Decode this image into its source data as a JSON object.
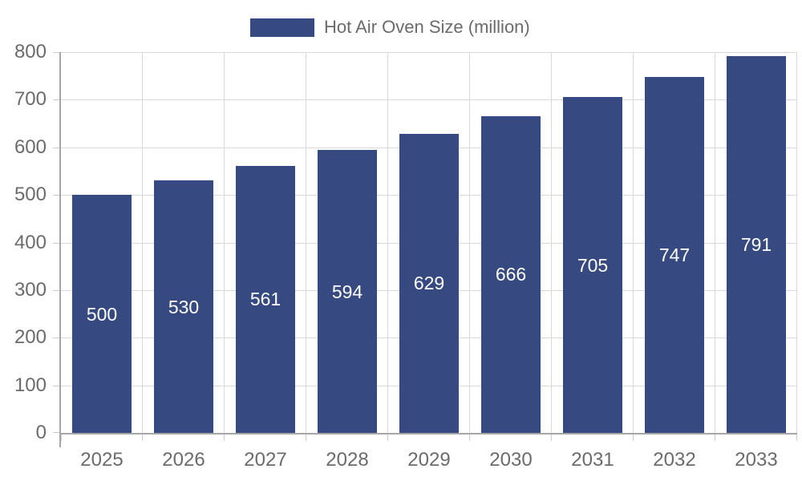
{
  "chart_data": {
    "type": "bar",
    "title": "Hot Air Oven Size (million)",
    "legend": [
      {
        "label": "Hot Air Oven Size (million)",
        "color": "#364980"
      }
    ],
    "legend_position": "top",
    "categories": [
      "2025",
      "2026",
      "2027",
      "2028",
      "2029",
      "2030",
      "2031",
      "2032",
      "2033"
    ],
    "series": [
      {
        "name": "Hot Air Oven Size (million)",
        "values": [
          500,
          530,
          561,
          594,
          629,
          666,
          705,
          747,
          791
        ]
      }
    ],
    "bar_labels": [
      "500",
      "530",
      "561",
      "594",
      "629",
      "666",
      "705",
      "747",
      "791"
    ],
    "xlabel": "",
    "ylabel": "",
    "ylim": [
      0,
      800
    ],
    "yticks": [
      0,
      100,
      200,
      300,
      400,
      500,
      600,
      700,
      800
    ],
    "grid": true,
    "colors": {
      "bar": "#364980",
      "bar_label_text": "#ffffff",
      "axis_text": "#6b6b6b",
      "gridline": "#d9d9d9",
      "axis_line": "#a6a6a6",
      "tick_mark": "#cccccc",
      "background": "#ffffff"
    }
  }
}
